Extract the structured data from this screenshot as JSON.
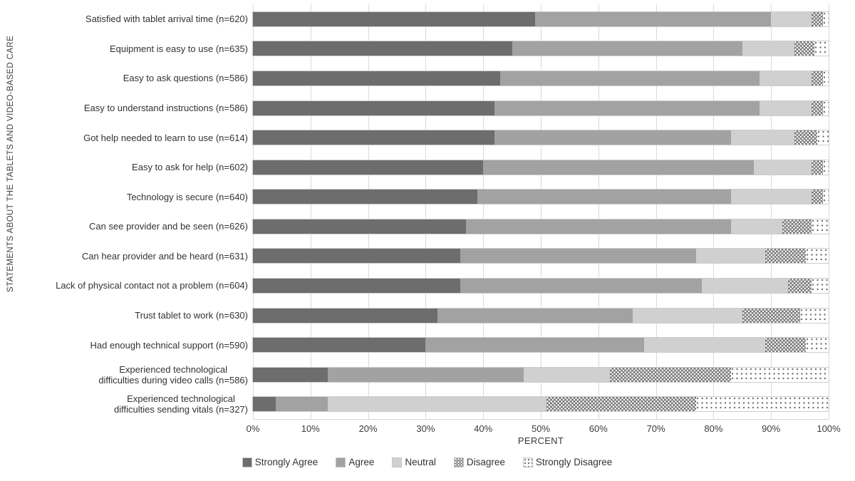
{
  "chart_data": {
    "type": "bar",
    "stacked": true,
    "orientation": "horizontal",
    "xlabel": "PERCENT",
    "ylabel": "STATEMENTS ABOUT THE TABLETS AND VIDEO-BASED CARE",
    "xlim": [
      0,
      100
    ],
    "x_ticks": [
      "0%",
      "10%",
      "20%",
      "30%",
      "40%",
      "50%",
      "60%",
      "70%",
      "80%",
      "90%",
      "100%"
    ],
    "grid": true,
    "legend_position": "bottom",
    "categories": [
      "Satisfied with tablet arrival time (n=620)",
      "Equipment is easy to use (n=635)",
      "Easy to ask questions (n=586)",
      "Easy to understand instructions (n=586)",
      "Got help needed to learn to use (n=614)",
      "Easy to ask for help (n=602)",
      "Technology is secure (n=640)",
      "Can see provider and be seen (n=626)",
      "Can hear provider and be heard (n=631)",
      "Lack of physical contact not a problem (n=604)",
      "Trust  tablet to work (n=630)",
      "Had enough technical support (n=590)",
      "Experienced technological\ndifficulties during video calls (n=586)",
      "Experienced technological\ndifficulties sending vitals (n=327)"
    ],
    "series": [
      {
        "name": "Strongly Agree",
        "values": [
          49,
          45,
          43,
          42,
          42,
          40,
          39,
          37,
          36,
          36,
          32,
          30,
          13,
          4
        ]
      },
      {
        "name": "Agree",
        "values": [
          41,
          40,
          45,
          46,
          41,
          47,
          44,
          46,
          41,
          42,
          34,
          38,
          34,
          9
        ]
      },
      {
        "name": "Neutral",
        "values": [
          7,
          9,
          9,
          9,
          11,
          10,
          14,
          9,
          12,
          15,
          19,
          21,
          15,
          38
        ]
      },
      {
        "name": "Disagree",
        "values": [
          2,
          3.5,
          2,
          2,
          4,
          2,
          2,
          5,
          7,
          4,
          10,
          7,
          21,
          26
        ]
      },
      {
        "name": "Strongly Disagree",
        "values": [
          1,
          2.5,
          1,
          1,
          2,
          1,
          1,
          3,
          4,
          3,
          5,
          4,
          17,
          23
        ]
      }
    ],
    "colors": {
      "strongly_agree": "#6d6d6d",
      "agree": "#a2a2a2",
      "neutral": "#d0d0d0",
      "disagree_pattern_base": "#7d7d7d",
      "strongly_disagree_pattern_base": "#ffffff",
      "gridline": "#dadada"
    }
  }
}
